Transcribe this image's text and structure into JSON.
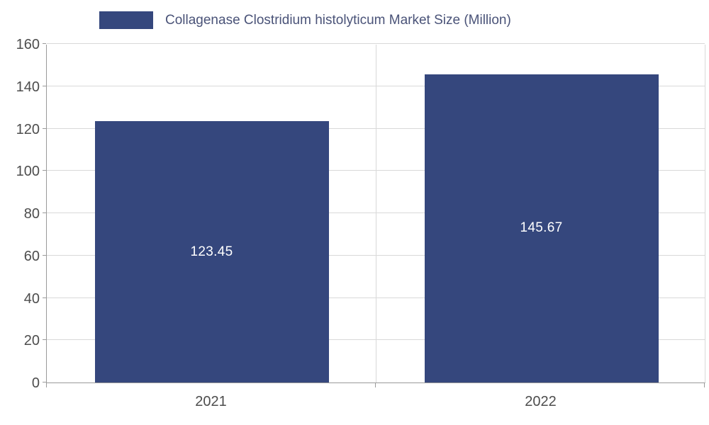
{
  "chart_data": {
    "type": "bar",
    "title": "Collagenase Clostridium histolyticum Market Size (Million)",
    "categories": [
      "2021",
      "2022"
    ],
    "values": [
      123.45,
      145.67
    ],
    "value_labels": [
      "123.45",
      "145.67"
    ],
    "xlabel": "",
    "ylabel": "",
    "ylim": [
      0,
      160
    ],
    "yticks": [
      0,
      20,
      40,
      60,
      80,
      100,
      120,
      140,
      160
    ],
    "bar_color": "#35477d",
    "label_color": "#ffffff",
    "grid": true,
    "legend_position": "top"
  }
}
